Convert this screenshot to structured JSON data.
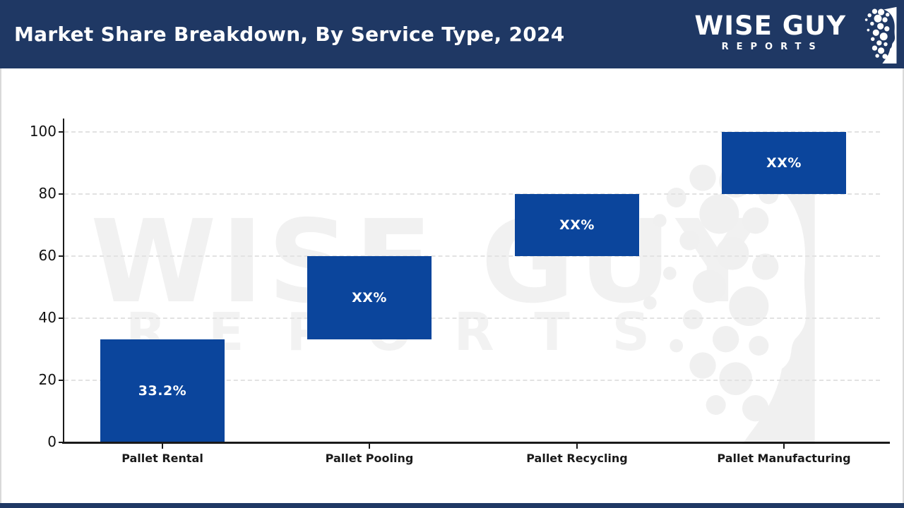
{
  "header": {
    "title": "Market Share Breakdown, By Service Type, 2024",
    "logo": {
      "wordmark": "WISE GUY",
      "subtitle": "REPORTS"
    }
  },
  "watermark": {
    "wordmark": "WISE GUY",
    "subtitle": "REPORTS"
  },
  "chart_data": {
    "type": "bar",
    "subtype": "floating-waterfall-bars",
    "title": "Market Share Breakdown, By Service Type, 2024",
    "xlabel": "",
    "ylabel": "",
    "categories": [
      "Pallet Rental",
      "Pallet Pooling",
      "Pallet Recycling",
      "Pallet Manufacturing"
    ],
    "segments": [
      {
        "category": "Pallet Rental",
        "start": 0,
        "end": 33.2,
        "label": "33.2%"
      },
      {
        "category": "Pallet Pooling",
        "start": 33.2,
        "end": 60,
        "label": "XX%"
      },
      {
        "category": "Pallet Recycling",
        "start": 60,
        "end": 80,
        "label": "XX%"
      },
      {
        "category": "Pallet Manufacturing",
        "start": 80,
        "end": 100,
        "label": "XX%"
      }
    ],
    "yticks": [
      0,
      20,
      40,
      60,
      80,
      100
    ],
    "ylim": [
      0,
      104.5
    ],
    "grid": "horizontal-dashed",
    "legend": "none",
    "colors": {
      "bar": "#0b459c",
      "bar_label": "#ffffff",
      "axis": "#1a1a1a",
      "grid": "#e2e2e2",
      "header_bg": "#1f3864",
      "watermark": "#f0f0f0"
    }
  }
}
